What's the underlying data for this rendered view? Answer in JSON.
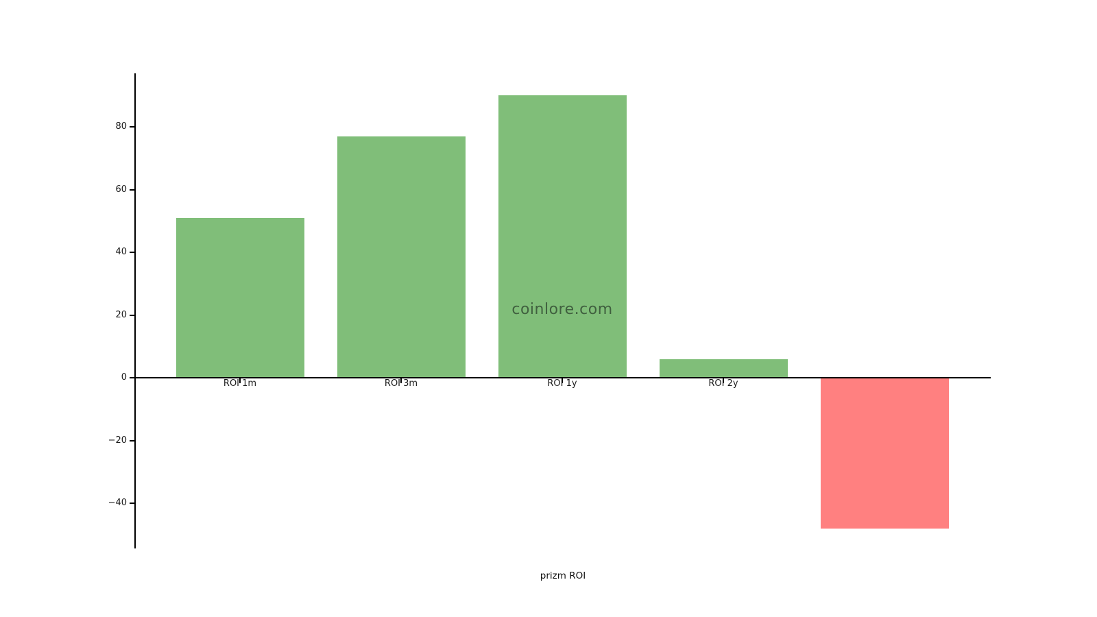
{
  "page": {
    "background": "#ffffff"
  },
  "watermark": {
    "text": "coinlore.com",
    "color": "#40603f"
  },
  "chart_data": {
    "type": "bar",
    "categories": [
      "ROI 1m",
      "ROI 3m",
      "ROI 1y",
      "ROI 2y",
      ""
    ],
    "values": [
      51,
      77,
      90,
      6,
      -48
    ],
    "series": [
      {
        "name": "prizm ROI",
        "values": [
          51,
          77,
          90,
          6,
          -48
        ]
      }
    ],
    "xlabel": "prizm ROI",
    "ylabel": "",
    "y_ticks": [
      80,
      60,
      40,
      20,
      0,
      -20,
      -40
    ],
    "ylim": [
      -54.5,
      97
    ],
    "grid": false,
    "legend": null,
    "colors": {
      "positive_bar": "#80be79",
      "negative_bar": "#ff8080",
      "axis": "#000000",
      "tick_text": "#1a1a1a"
    }
  }
}
